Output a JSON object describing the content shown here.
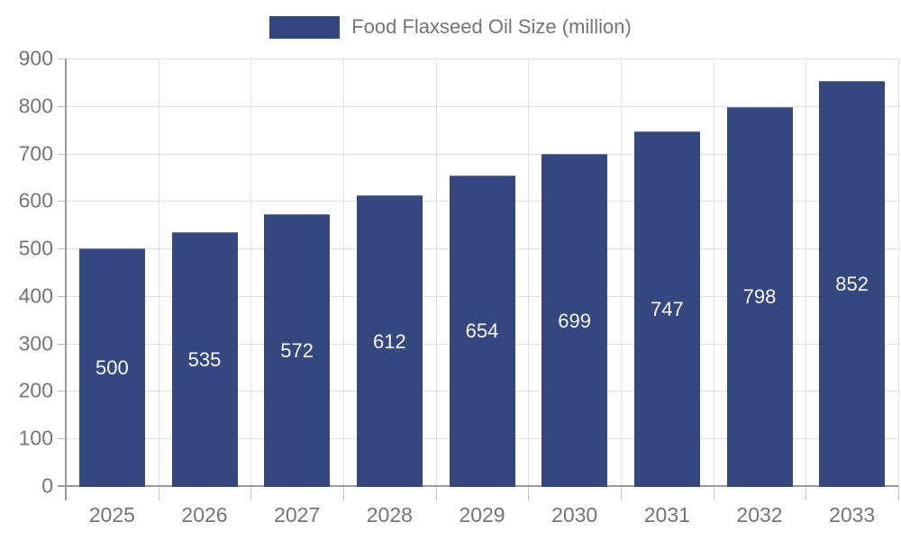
{
  "chart_data": {
    "type": "bar",
    "title": "Food Flaxseed Oil Size (million)",
    "legend": [
      {
        "label": "Food Flaxseed Oil Size (million)"
      }
    ],
    "legend_position": "top-center",
    "categories": [
      "2025",
      "2026",
      "2027",
      "2028",
      "2029",
      "2030",
      "2031",
      "2032",
      "2033"
    ],
    "series": [
      {
        "name": "Food Flaxseed Oil Size (million)",
        "values": [
          500,
          535,
          572,
          612,
          654,
          699,
          747,
          798,
          852
        ]
      }
    ],
    "value_labels_inside_bars": true,
    "xlabel": "",
    "ylabel": "",
    "ylim": [
      0,
      900
    ],
    "y_ticks": [
      0,
      100,
      200,
      300,
      400,
      500,
      600,
      700,
      800,
      900
    ],
    "grid": true,
    "colors": {
      "bar": "#35477F",
      "bar_label": "#FAFAFA",
      "axis_text": "#757575",
      "legend_text": "#757575",
      "gridline": "#E0E0E0",
      "axis_line": "#9A9A9A"
    }
  }
}
